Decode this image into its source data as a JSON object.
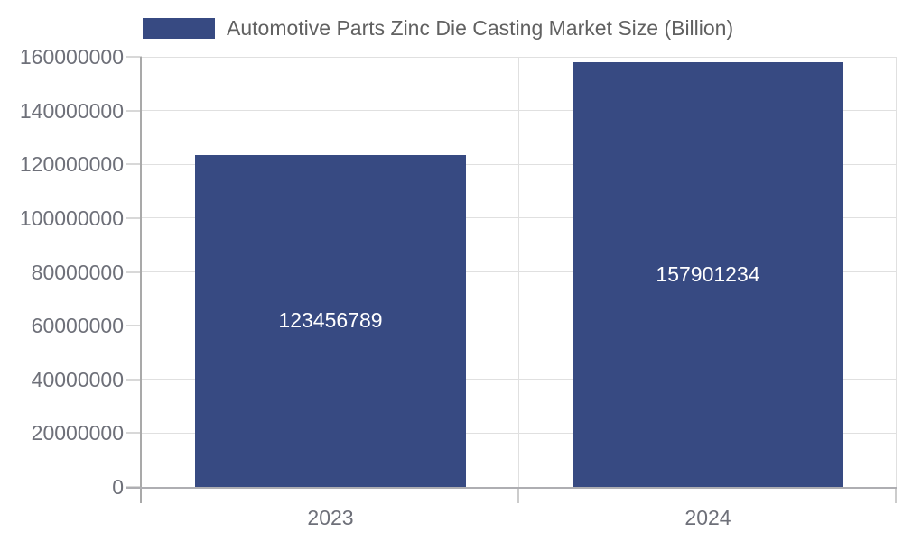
{
  "legend": {
    "label": "Automotive Parts Zinc Die Casting Market Size (Billion)"
  },
  "chart_data": {
    "type": "bar",
    "title": "Automotive Parts Zinc Die Casting Market Size (Billion)",
    "categories": [
      "2023",
      "2024"
    ],
    "series": [
      {
        "name": "Automotive Parts Zinc Die Casting Market Size (Billion)",
        "values": [
          123456789,
          157901234
        ]
      }
    ],
    "bar_value_labels": [
      "123456789",
      "157901234"
    ],
    "xlabel": "",
    "ylabel": "",
    "ylim": [
      0,
      160000000
    ],
    "ytick_labels": [
      "0",
      "20000000",
      "40000000",
      "60000000",
      "80000000",
      "100000000",
      "120000000",
      "140000000",
      "160000000"
    ],
    "grid": true,
    "legend_position": "top-left",
    "colors": {
      "bar": "#374a82",
      "grid": "#e0e0e0",
      "axis_line": "#a9a9a9",
      "tick": "#d8d8d8",
      "axis_label": "#6e7079",
      "legend_text": "#616161",
      "value_label": "#ffffff",
      "background": "#ffffff"
    }
  }
}
